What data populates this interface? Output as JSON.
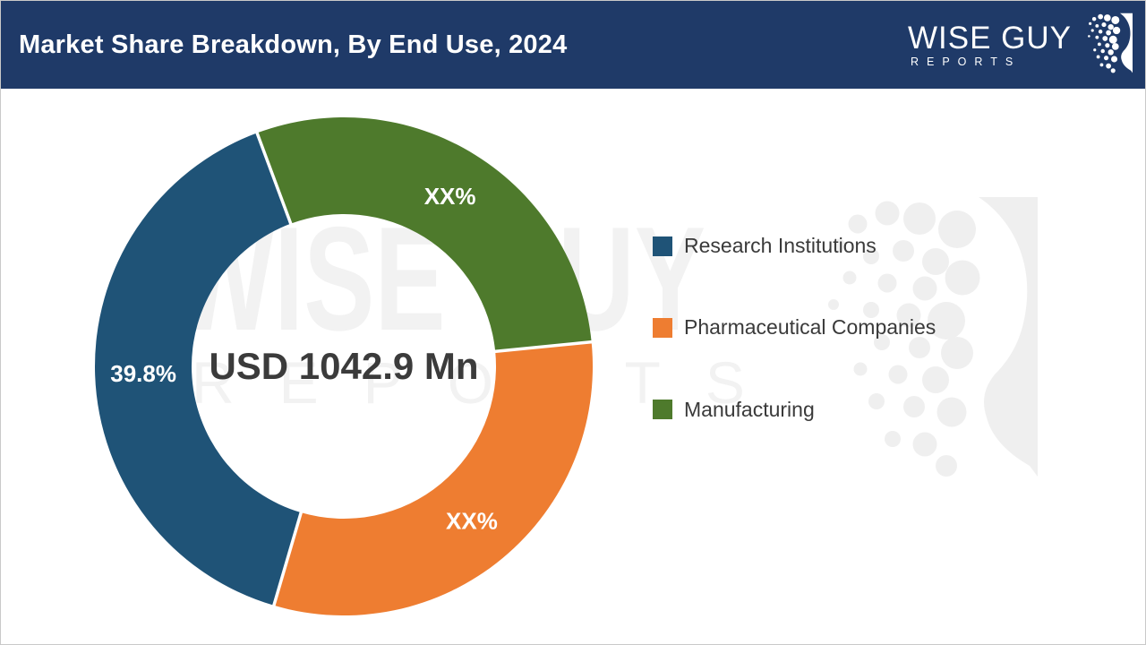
{
  "header": {
    "title": "Market Share Breakdown, By End Use, 2024"
  },
  "logo": {
    "line1": "WISE GUY",
    "line2": "REPORTS"
  },
  "watermark": {
    "line1": "WISE GUY",
    "line2": "REPORTS"
  },
  "chart_data": {
    "type": "pie",
    "subtype": "donut",
    "title": "Market Share Breakdown, By End Use, 2024",
    "center_label": "USD 1042.9 Mn",
    "legend_position": "right",
    "donut": {
      "start_angle_deg": 110.4,
      "direction": "ccw",
      "inner_ratio": 0.61
    },
    "segments": [
      {
        "label": "Research Institutions",
        "value": 39.8,
        "display_label": "39.8%",
        "color": "#1f5377"
      },
      {
        "label": "Pharmaceutical Companies",
        "value": 31.1,
        "display_label": "XX%",
        "color": "#ee7d31"
      },
      {
        "label": "Manufacturing",
        "value": 29.1,
        "display_label": "XX%",
        "color": "#4e7a2c"
      }
    ]
  },
  "colors": {
    "header_bg": "#1f3a68",
    "text_dark": "#3a3a3a",
    "watermark": "#f2f2f2",
    "page_border": "#c9c9c9"
  }
}
